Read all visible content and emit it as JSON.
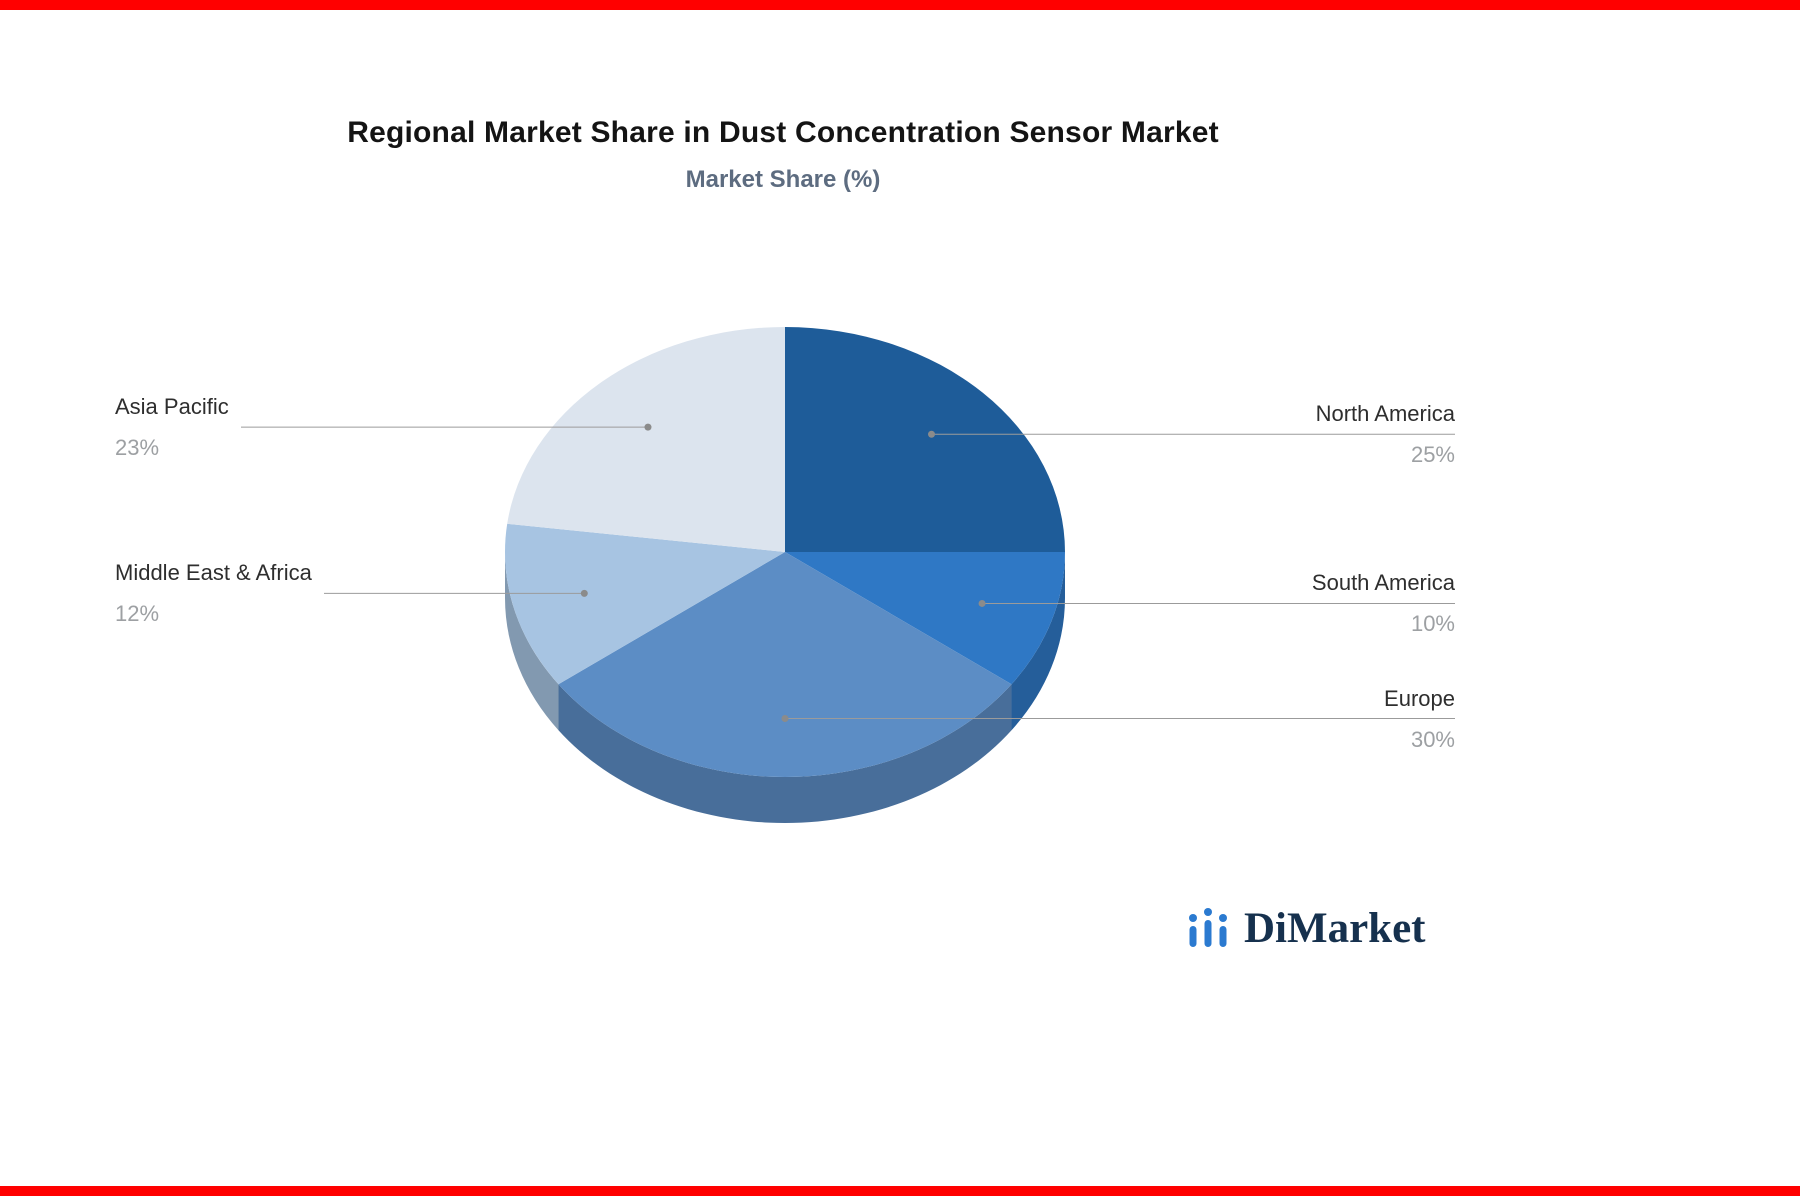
{
  "page": {
    "border_color": "#ff0000",
    "background": "#ffffff"
  },
  "brand": {
    "name": "DiMarket",
    "icon": "bar-chart-icon",
    "icon_color": "#2b7ad0",
    "text_color": "#16314e"
  },
  "chart_data": {
    "type": "pie",
    "title": "Regional Market Share in Dust Concentration Sensor Market",
    "subtitle": "Market Share (%)",
    "unit": "%",
    "effect": "3d",
    "start_angle": "top",
    "direction": "clockwise",
    "legend_position": "none",
    "labels_style": "callout-lines",
    "slices": [
      {
        "label": "North America",
        "value": 25,
        "display": "25%",
        "color": "#1e5c99"
      },
      {
        "label": "South America",
        "value": 10,
        "display": "10%",
        "color": "#2f78c5"
      },
      {
        "label": "Europe",
        "value": 30,
        "display": "30%",
        "color": "#5c8dc5"
      },
      {
        "label": "Middle East & Africa",
        "value": 12,
        "display": "12%",
        "color": "#a7c4e2"
      },
      {
        "label": "Asia Pacific",
        "value": 23,
        "display": "23%",
        "color": "#dce4ee"
      }
    ]
  }
}
